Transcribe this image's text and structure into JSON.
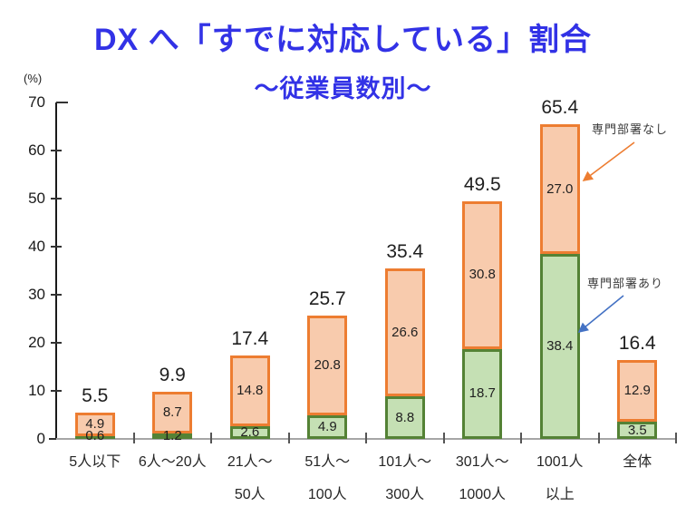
{
  "title": "DX へ「すでに対応している」割合",
  "subtitle": "～従業員数別～",
  "y_axis_unit": "(%)",
  "colors": {
    "title_blue": "#3232E6",
    "ari_fill": "#C5E0B4",
    "ari_border": "#548235",
    "nashi_fill": "#F8CBAD",
    "nashi_border": "#ED7D31",
    "annotation_arrow_nashi": "#ED7D31",
    "annotation_arrow_ari": "#4472C4",
    "axis_line": "#1a1a1a",
    "baseline_gray": "#a6a6a6"
  },
  "chart_data": {
    "type": "bar",
    "stacked": true,
    "title": "DX へ「すでに対応している」割合",
    "subtitle": "～従業員数別～",
    "xlabel": "",
    "ylabel": "(%)",
    "ylim": [
      0,
      70
    ],
    "yticks": [
      0,
      10,
      20,
      30,
      40,
      50,
      60,
      70
    ],
    "grid": false,
    "legend_position": "right-annotations",
    "categories": [
      [
        "5人以下"
      ],
      [
        "6人～20人"
      ],
      [
        "21人～",
        "50人"
      ],
      [
        "51人～",
        "100人"
      ],
      [
        "101人～",
        "300人"
      ],
      [
        "301人～",
        "1000人"
      ],
      [
        "1001人",
        "以上"
      ],
      [
        "全体"
      ]
    ],
    "series": [
      {
        "name": "専門部署あり",
        "stack_order": "bottom",
        "fill": "#C5E0B4",
        "border": "#548235",
        "values": [
          0.6,
          1.2,
          2.6,
          4.9,
          8.8,
          18.7,
          38.4,
          3.5
        ],
        "labels": [
          "0.6",
          "1.2",
          "2.6",
          "4.9",
          "8.8",
          "18.7",
          "38.4",
          "3.5"
        ]
      },
      {
        "name": "専門部署なし",
        "stack_order": "top",
        "fill": "#F8CBAD",
        "border": "#ED7D31",
        "values": [
          4.9,
          8.7,
          14.8,
          20.8,
          26.6,
          30.8,
          27.0,
          12.9
        ],
        "labels": [
          "4.9",
          "8.7",
          "14.8",
          "20.8",
          "26.6",
          "30.8",
          "27.0",
          "12.9"
        ]
      }
    ],
    "totals": [
      "5.5",
      "9.9",
      "17.4",
      "25.7",
      "35.4",
      "49.5",
      "65.4",
      "16.4"
    ],
    "annotations": [
      {
        "text": "専門部署なし",
        "arrow_color": "#ED7D31",
        "points_to": "orange segment of 1001人以上 bar"
      },
      {
        "text": "専門部署あり",
        "arrow_color": "#4472C4",
        "points_to": "green segment of 1001人以上 bar"
      }
    ]
  }
}
